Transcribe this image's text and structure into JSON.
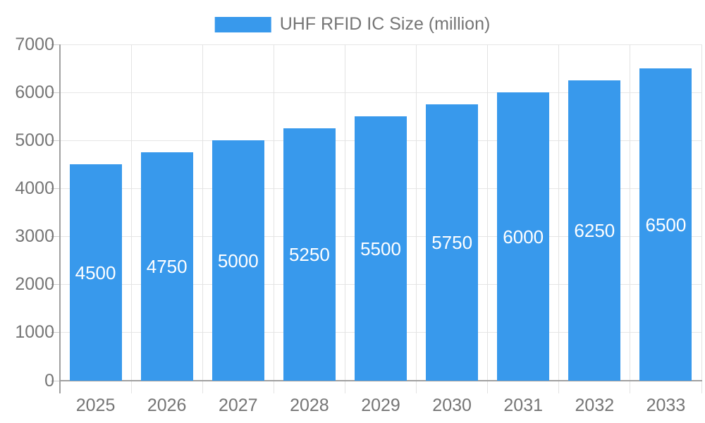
{
  "legend": {
    "label": "UHF RFID IC Size (million)"
  },
  "colors": {
    "bar": "#3899EC",
    "bar_label": "#FFFFFF",
    "axis_label": "#757575",
    "axis_line": "#A0A0A0",
    "gridline": "#E6E6E6",
    "background": "#FFFFFF"
  },
  "chart_data": {
    "type": "bar",
    "title": "UHF RFID IC Size (million)",
    "series": [
      {
        "name": "UHF RFID IC Size (million)",
        "values": [
          4500,
          4750,
          5000,
          5250,
          5500,
          5750,
          6000,
          6250,
          6500
        ]
      }
    ],
    "categories": [
      "2025",
      "2026",
      "2027",
      "2028",
      "2029",
      "2030",
      "2031",
      "2032",
      "2033"
    ],
    "bar_labels": [
      "4500",
      "4750",
      "5000",
      "5250",
      "5500",
      "5750",
      "6000",
      "6250",
      "6500"
    ],
    "xlabel": "",
    "ylabel": "",
    "ylim": [
      0,
      7000
    ],
    "y_ticks": [
      0,
      1000,
      2000,
      3000,
      4000,
      5000,
      6000,
      7000
    ],
    "y_tick_labels": [
      "0",
      "1000",
      "2000",
      "3000",
      "4000",
      "5000",
      "6000",
      "7000"
    ],
    "grid": "horizontal-and-vertical",
    "legend_position": "top-center",
    "bar_label_placement": "inside-center"
  }
}
